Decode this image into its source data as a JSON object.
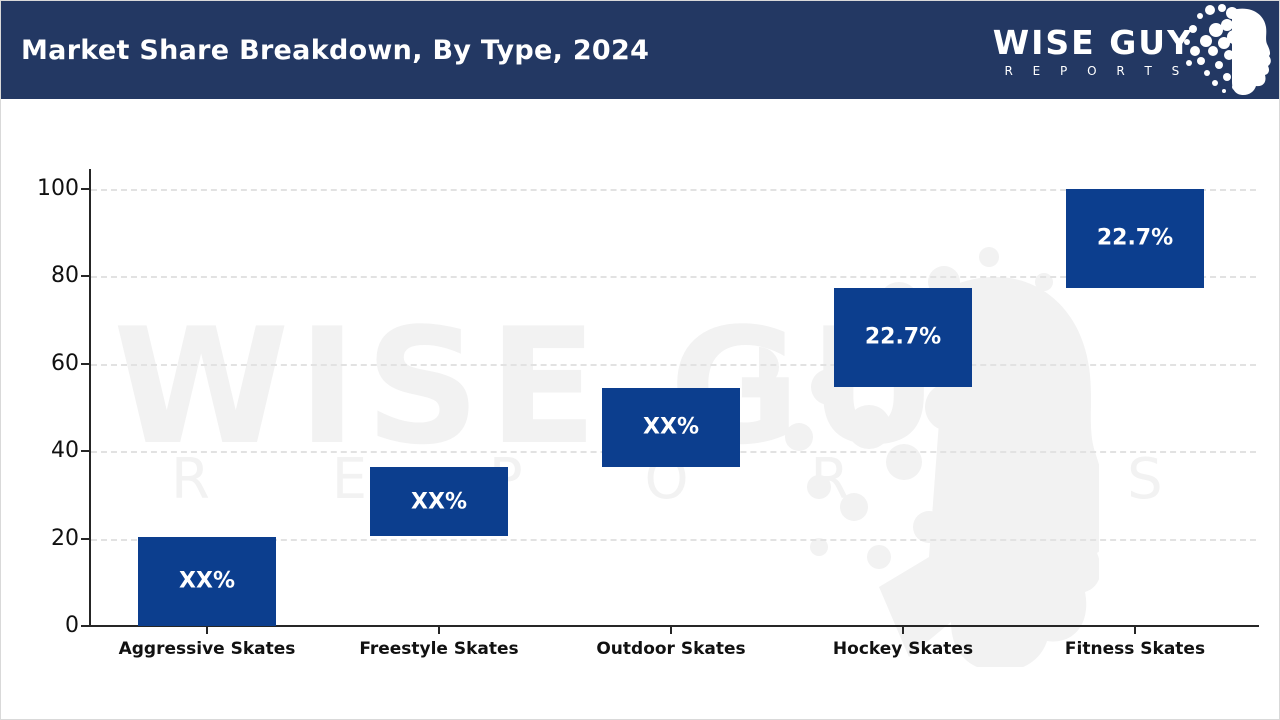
{
  "header": {
    "title": "Market Share Breakdown, By Type, 2024",
    "background": "#233863",
    "logo": {
      "line1": "WISE GUY",
      "line2": "R E P O R T S"
    }
  },
  "watermark": {
    "line1": "WISE GUY",
    "line2": "R E P O R T S"
  },
  "chart_data": {
    "type": "bar",
    "subtype": "waterfall",
    "title": "Market Share Breakdown, By Type, 2024",
    "categories": [
      "Aggressive Skates",
      "Freestyle Skates",
      "Outdoor Skates",
      "Hockey Skates",
      "Fitness Skates"
    ],
    "series": [
      {
        "name": "Market share (%)",
        "segment_start": [
          0,
          20.5,
          36.4,
          54.6,
          77.3
        ],
        "segment_end": [
          20.4,
          36.4,
          54.5,
          77.3,
          100
        ],
        "data_labels": [
          "XX%",
          "XX%",
          "XX%",
          "22.7%",
          "22.7%"
        ]
      }
    ],
    "ylim": [
      0,
      105
    ],
    "yticks": [
      0,
      20,
      40,
      60,
      80,
      100
    ],
    "grid": "horizontal-dashed",
    "legend": "none",
    "bar_color": "#0c3e8e",
    "data_label_color": "#ffffff",
    "axis_color": "#262626"
  }
}
